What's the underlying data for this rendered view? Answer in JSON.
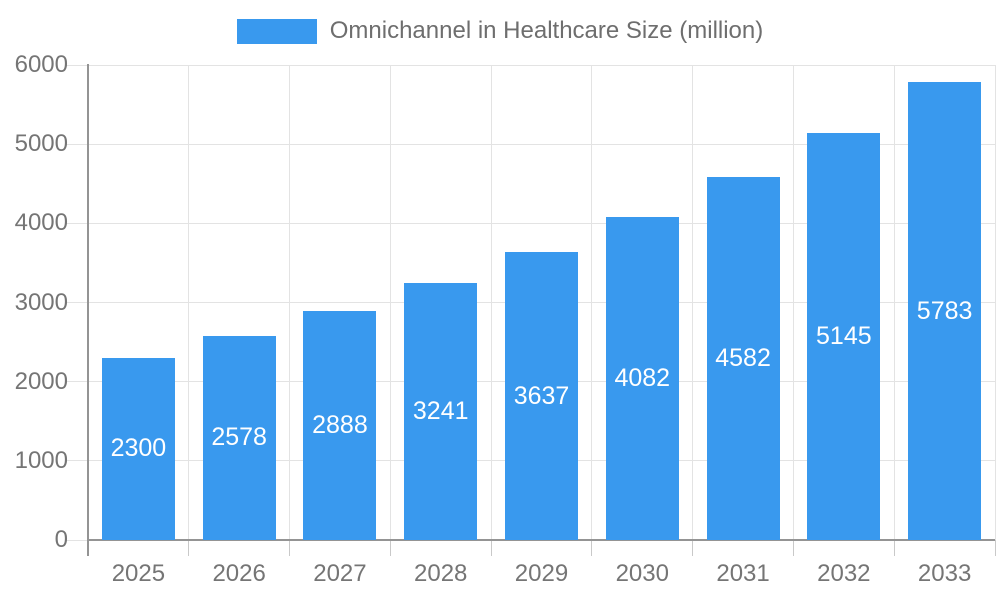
{
  "legend": {
    "label": "Omnichannel in Healthcare Size (million)"
  },
  "chart_data": {
    "type": "bar",
    "title": "Omnichannel in Healthcare Size (million)",
    "categories": [
      "2025",
      "2026",
      "2027",
      "2028",
      "2029",
      "2030",
      "2031",
      "2032",
      "2033"
    ],
    "values": [
      2300,
      2578,
      2888,
      3241,
      3637,
      4082,
      4582,
      5145,
      5783
    ],
    "series": [
      {
        "name": "Omnichannel in Healthcare Size (million)",
        "values": [
          2300,
          2578,
          2888,
          3241,
          3637,
          4082,
          4582,
          5145,
          5783
        ]
      }
    ],
    "xlabel": "",
    "ylabel": "",
    "ylim": [
      0,
      6000
    ],
    "yticks": [
      0,
      1000,
      2000,
      3000,
      4000,
      5000,
      6000
    ],
    "grid": true,
    "legend_position": "top",
    "bar_labels_inside": true,
    "colors": {
      "bar": "#3999ee",
      "bar_label": "#ffffff",
      "axis_text": "#757575",
      "legend_text": "#6e6e6e",
      "grid": "#e3e3e3",
      "axis_line": "#949494",
      "tick": "#c9c9c9",
      "background": "#ffffff"
    }
  }
}
